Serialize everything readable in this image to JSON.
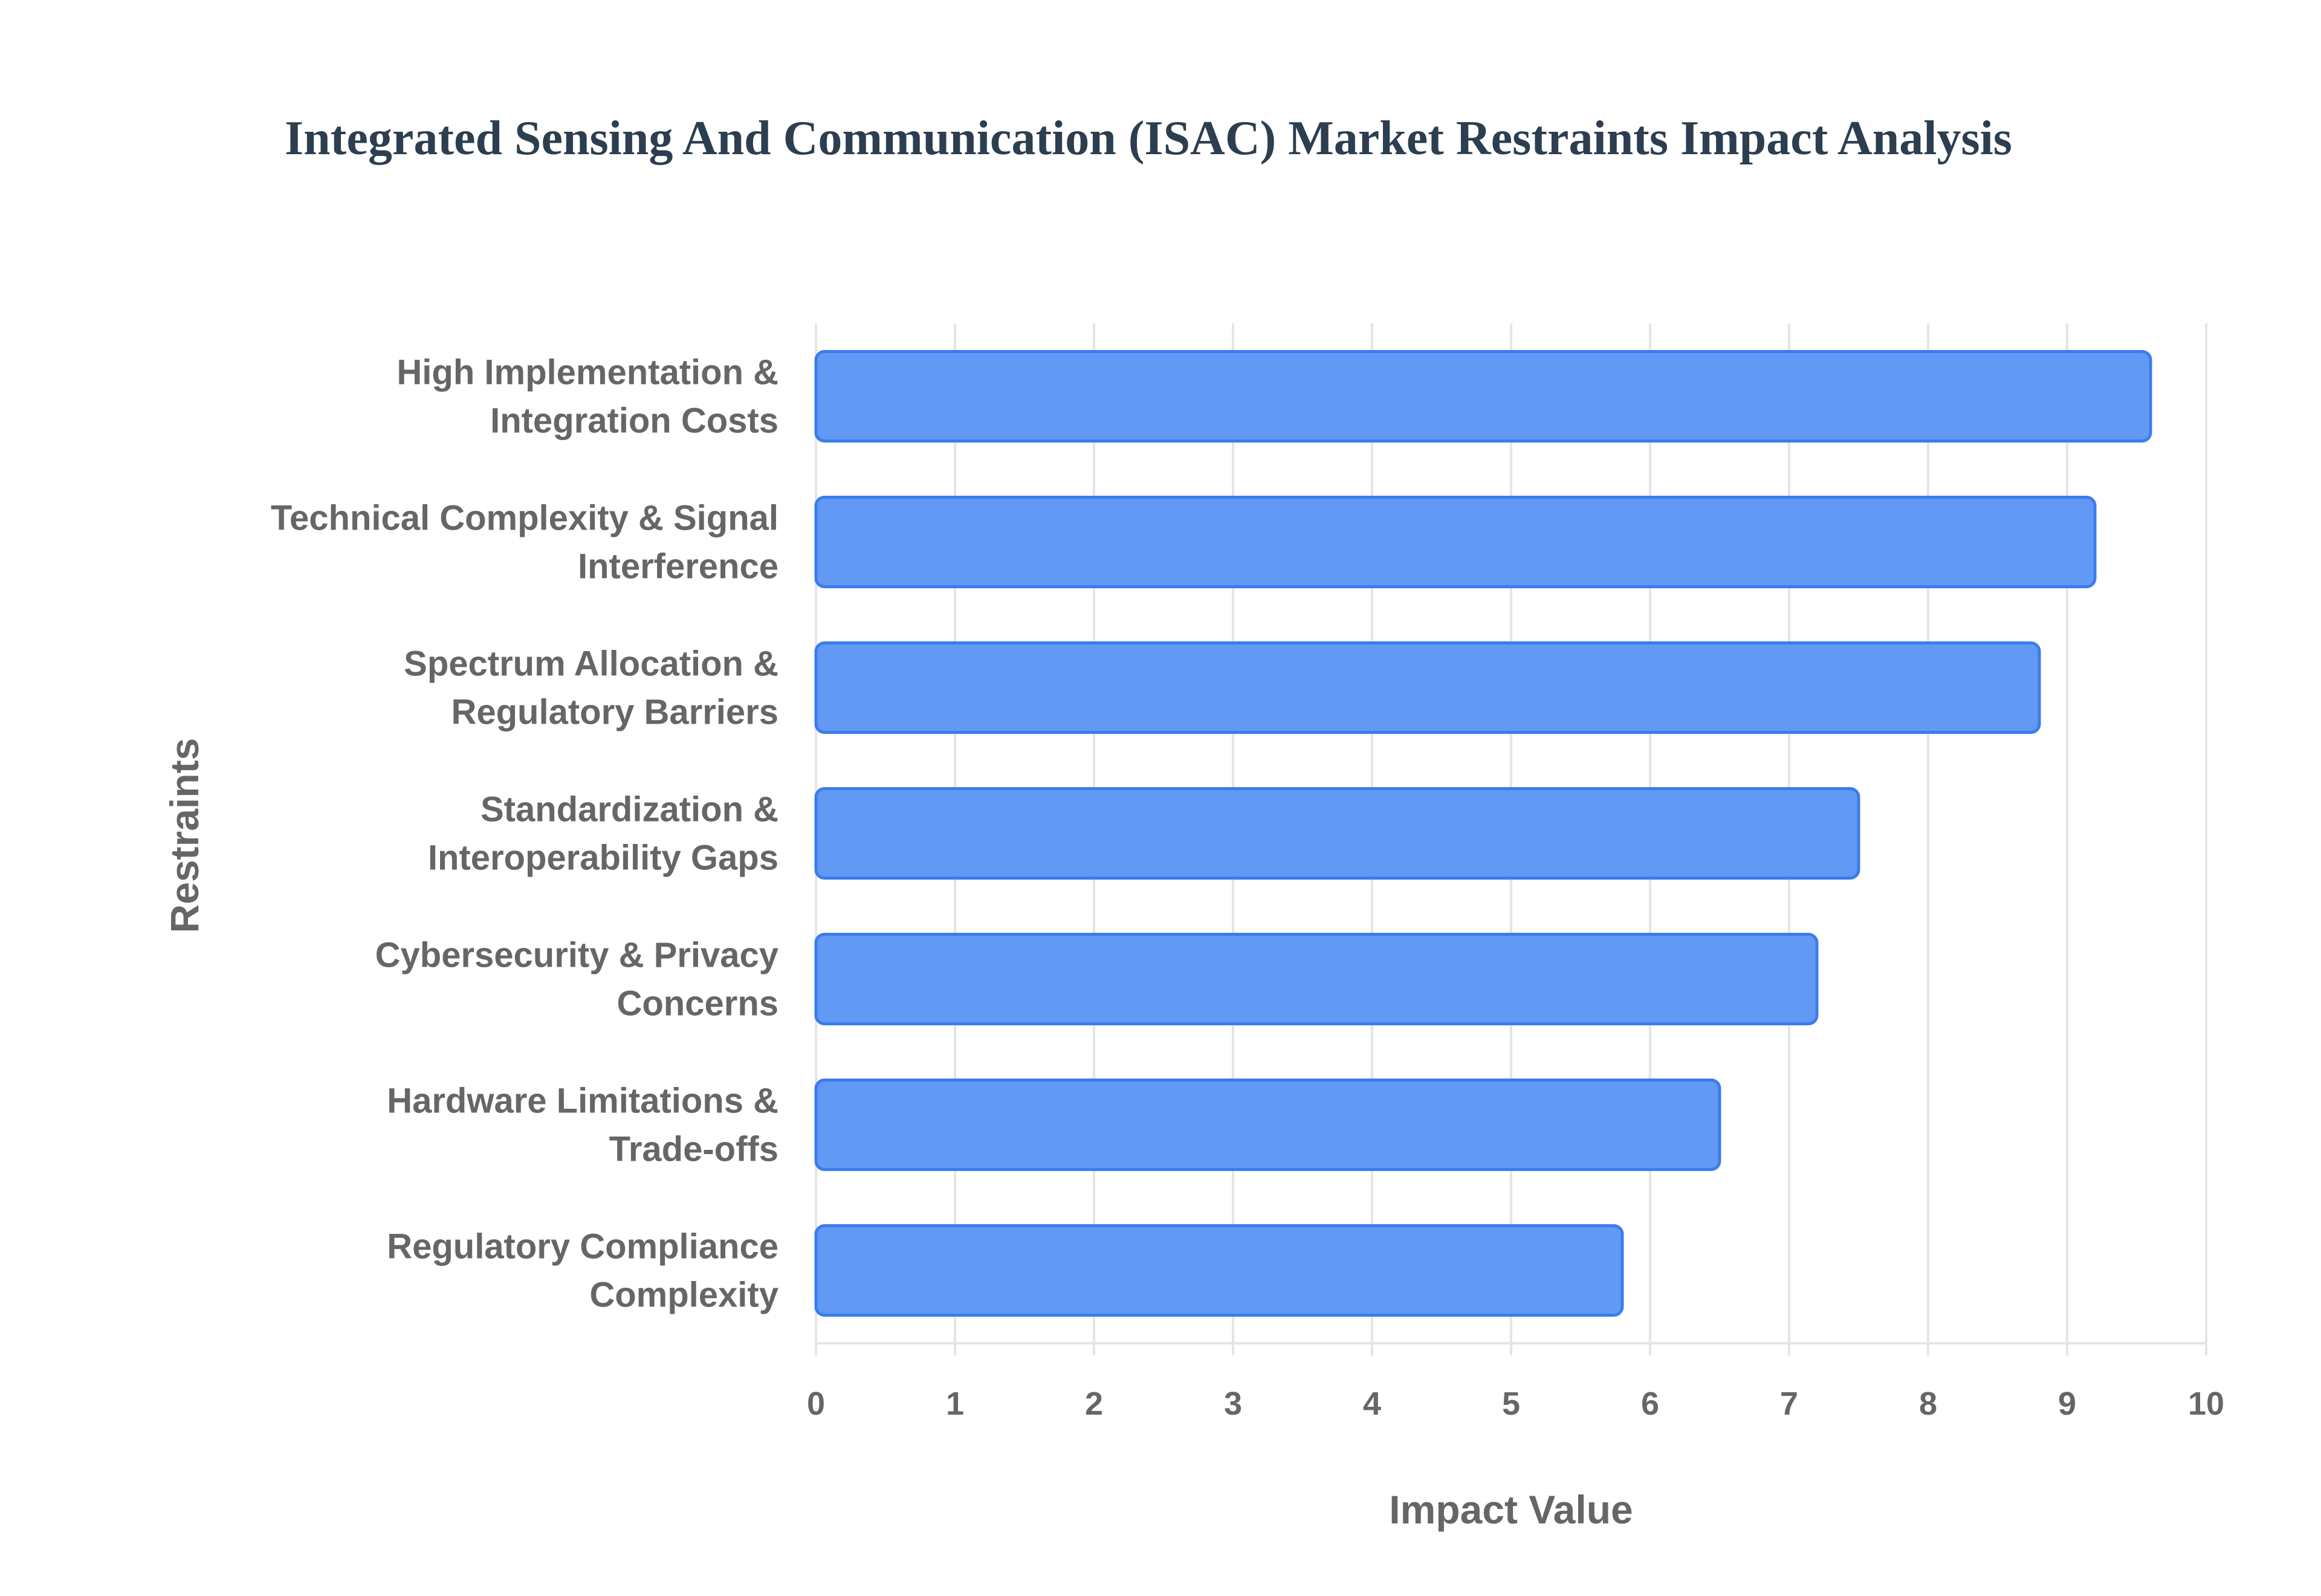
{
  "chart_data": {
    "type": "bar",
    "orientation": "horizontal",
    "title": "Integrated Sensing And Communication (ISAC) Market Restraints Impact Analysis",
    "xlabel": "Impact Value",
    "ylabel": "Restraints",
    "xlim": [
      0,
      10
    ],
    "xticks": [
      "0",
      "1",
      "2",
      "3",
      "4",
      "5",
      "6",
      "7",
      "8",
      "9",
      "10"
    ],
    "grid": true,
    "categories": [
      [
        "High Implementation &",
        "Integration Costs"
      ],
      [
        "Technical Complexity & Signal",
        "Interference"
      ],
      [
        "Spectrum Allocation &",
        "Regulatory Barriers"
      ],
      [
        "Standardization &",
        "Interoperability Gaps"
      ],
      [
        "Cybersecurity & Privacy",
        "Concerns"
      ],
      [
        "Hardware Limitations &",
        "Trade-offs"
      ],
      [
        "Regulatory Compliance",
        "Complexity"
      ]
    ],
    "values": [
      9.6,
      9.2,
      8.8,
      7.5,
      7.2,
      6.5,
      5.8
    ],
    "colors": {
      "bar_fill": "#6199f5",
      "bar_border": "#3b7ced",
      "grid": "#e5e5e5"
    }
  }
}
